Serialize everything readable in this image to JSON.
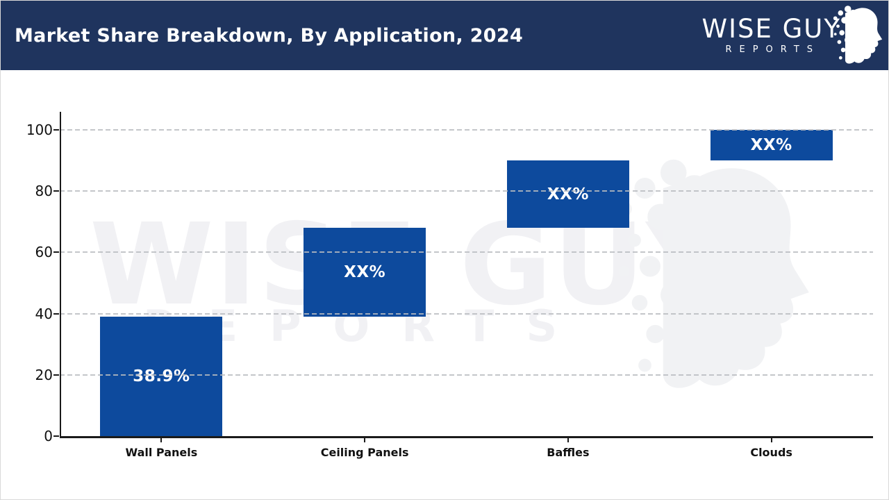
{
  "header": {
    "title": "Market Share Breakdown, By Application, 2024",
    "logo": {
      "line1": "WISE GUY",
      "line2": "REPORTS"
    }
  },
  "watermark": {
    "line1": "WISE GUY",
    "line2": "REPORTS"
  },
  "colors": {
    "header_bg": "#1F345E",
    "bar": "#0D4A9D",
    "grid": "#C6C9CD",
    "axis": "#1A1A1A",
    "watermark": "#F1F1F4",
    "bar_label": "#FFFFFF"
  },
  "chart_data": {
    "type": "bar",
    "subtype": "waterfall",
    "title": "Market Share Breakdown, By Application, 2024",
    "categories": [
      "Wall Panels",
      "Ceiling Panels",
      "Baffles",
      "Clouds"
    ],
    "series": [
      {
        "name": "Market Share (%)",
        "segments": [
          {
            "category": "Wall Panels",
            "start": 0,
            "end": 38.9,
            "label": "38.9%"
          },
          {
            "category": "Ceiling Panels",
            "start": 38.9,
            "end": 68,
            "label": "XX%"
          },
          {
            "category": "Baffles",
            "start": 68,
            "end": 90,
            "label": "XX%"
          },
          {
            "category": "Clouds",
            "start": 90,
            "end": 100,
            "label": "XX%"
          }
        ]
      }
    ],
    "xlabel": "",
    "ylabel": "",
    "ylim": [
      0,
      100
    ],
    "yticks": [
      0,
      20,
      40,
      60,
      80,
      100
    ],
    "grid": "horizontal-dashed",
    "legend": "none"
  }
}
